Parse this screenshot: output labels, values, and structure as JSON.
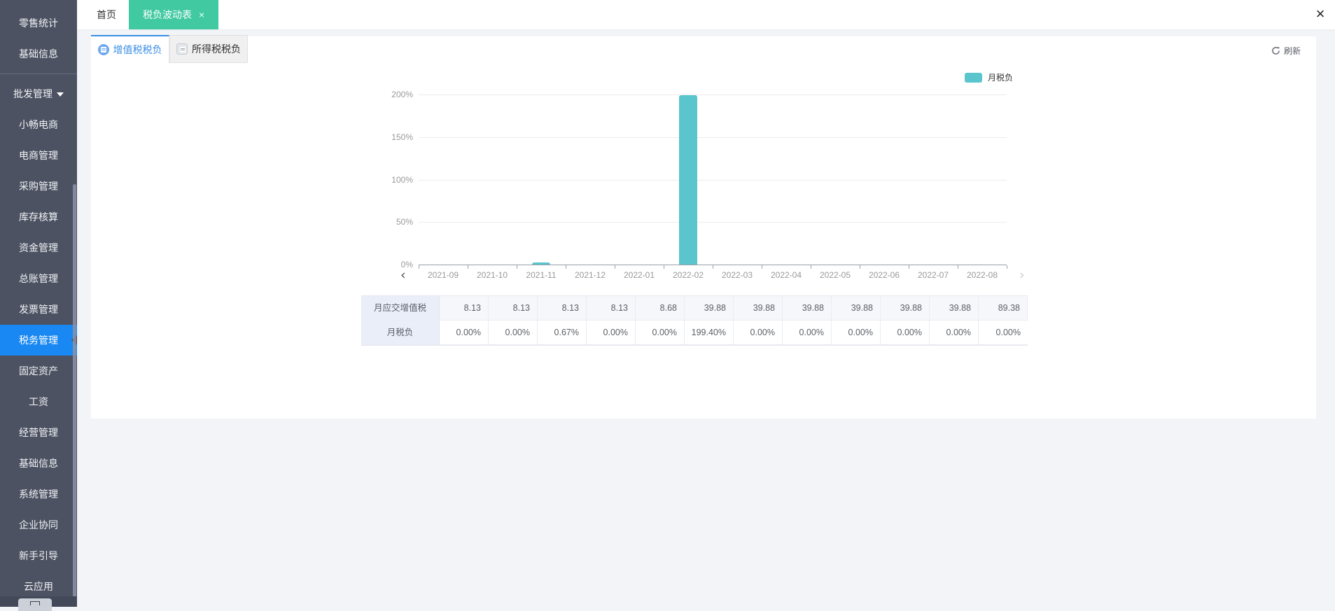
{
  "window": {
    "close_icon": "×"
  },
  "top_tabs": {
    "items": [
      {
        "label": "首页",
        "active": false,
        "closable": false
      },
      {
        "label": "税负波动表",
        "active": true,
        "closable": true,
        "close_icon": "×"
      }
    ]
  },
  "sidebar": {
    "sections": [
      {
        "items": [
          {
            "label": "零售统计"
          },
          {
            "label": "基础信息"
          }
        ]
      },
      {
        "items": [
          {
            "label": "批发管理",
            "has_dropdown": true
          },
          {
            "label": "小畅电商"
          },
          {
            "label": "电商管理"
          },
          {
            "label": "采购管理"
          },
          {
            "label": "库存核算"
          },
          {
            "label": "资金管理"
          },
          {
            "label": "总账管理"
          },
          {
            "label": "发票管理"
          },
          {
            "label": "税务管理",
            "active": true
          },
          {
            "label": "固定资产"
          },
          {
            "label": "工资"
          },
          {
            "label": "经营管理"
          },
          {
            "label": "基础信息"
          },
          {
            "label": "系统管理"
          },
          {
            "label": "企业协同"
          },
          {
            "label": "新手引导"
          },
          {
            "label": "云应用"
          }
        ]
      }
    ]
  },
  "content": {
    "tabs": [
      {
        "label": "增值税税负",
        "active": true,
        "icon": "vat-doc-icon"
      },
      {
        "label": "所得税税负",
        "active": false,
        "icon": "income-tax-doc-icon"
      }
    ],
    "refresh_label": "刷新"
  },
  "chart_data": {
    "type": "bar",
    "title": "",
    "categories": [
      "2021-09",
      "2021-10",
      "2021-11",
      "2021-12",
      "2022-01",
      "2022-02",
      "2022-03",
      "2022-04",
      "2022-05",
      "2022-06",
      "2022-07",
      "2022-08"
    ],
    "series": [
      {
        "name": "月税负",
        "values": [
          0.0,
          0.0,
          0.67,
          0.0,
          0.0,
          199.4,
          0.0,
          0.0,
          0.0,
          0.0,
          0.0,
          0.0
        ]
      }
    ],
    "y_ticks": [
      {
        "label": "0%",
        "value": 0
      },
      {
        "label": "50%",
        "value": 50
      },
      {
        "label": "100%",
        "value": 100
      },
      {
        "label": "150%",
        "value": 150
      },
      {
        "label": "200%",
        "value": 200
      }
    ],
    "ylim": [
      0,
      200
    ],
    "bar_color": "#5ac5cd",
    "legend_position": "top-right",
    "grid": true,
    "nav": {
      "prev": "‹",
      "next": "›"
    }
  },
  "table": {
    "rows": [
      {
        "label": "月应交增值税",
        "values": [
          "8.13",
          "8.13",
          "8.13",
          "8.13",
          "8.68",
          "39.88",
          "39.88",
          "39.88",
          "39.88",
          "39.88",
          "39.88",
          "89.38"
        ]
      },
      {
        "label": "月税负",
        "values": [
          "0.00%",
          "0.00%",
          "0.67%",
          "0.00%",
          "0.00%",
          "199.40%",
          "0.00%",
          "0.00%",
          "0.00%",
          "0.00%",
          "0.00%",
          "0.00%"
        ]
      }
    ]
  },
  "colors": {
    "sidebar_bg": "#4c5262",
    "sidebar_active": "#1a88f2",
    "tab_green": "#41c9a1",
    "bar_teal": "#5ac5cd",
    "accent_blue": "#3a8ee6",
    "page_bg": "#f2f4f8"
  }
}
